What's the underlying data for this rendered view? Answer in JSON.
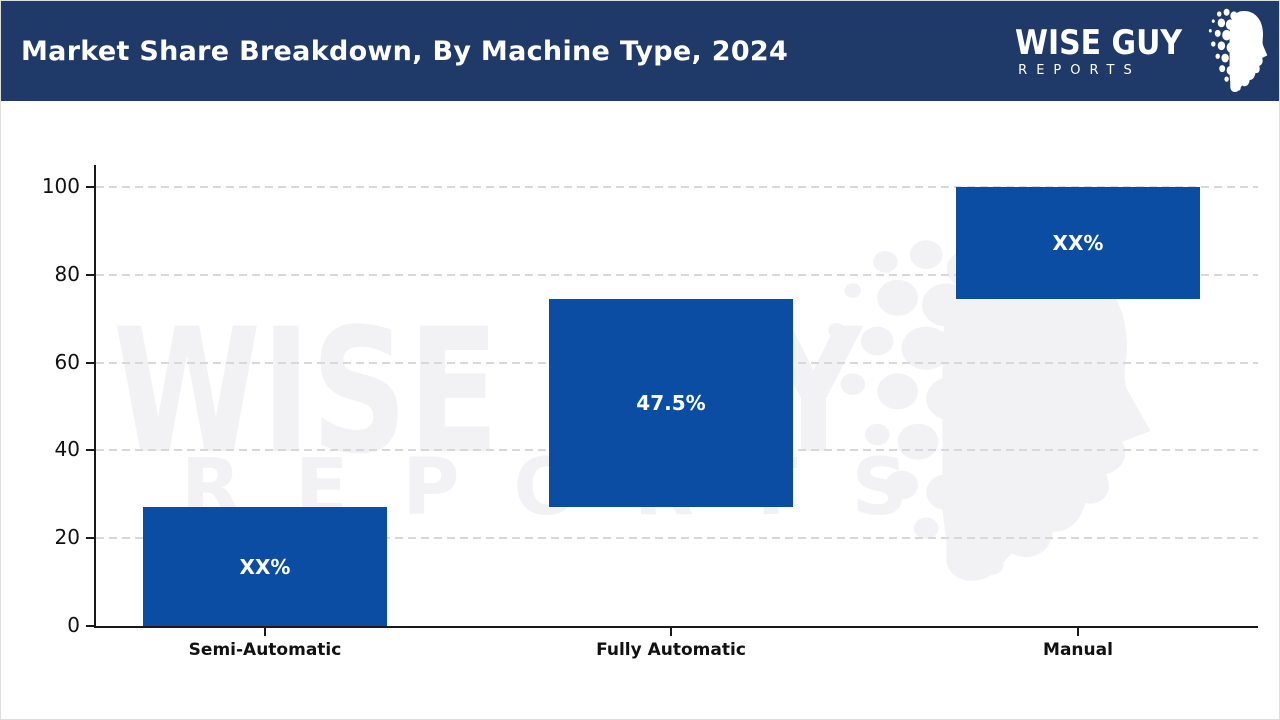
{
  "header": {
    "title": "Market Share Breakdown, By Machine Type, 2024",
    "logo": {
      "name": "WISE GUY",
      "subtitle": "REPORTS"
    }
  },
  "watermark": {
    "name": "WISE GUY",
    "subtitle": "REPORTS"
  },
  "chart_data": {
    "type": "bar",
    "subtype": "waterfall-breakdown",
    "title": "Market Share Breakdown, By Machine Type, 2024",
    "categories": [
      "Semi-Automatic",
      "Fully Automatic",
      "Manual"
    ],
    "segments": [
      {
        "category": "Semi-Automatic",
        "start": 0,
        "end": 27,
        "label": "XX%"
      },
      {
        "category": "Fully Automatic",
        "start": 27,
        "end": 74.5,
        "label": "47.5%"
      },
      {
        "category": "Manual",
        "start": 74.5,
        "end": 100,
        "label": "XX%"
      }
    ],
    "xlabel": "",
    "ylabel": "",
    "yticks": [
      0,
      20,
      40,
      60,
      80,
      100
    ],
    "ylim": [
      0,
      105
    ],
    "grid": "horizontal-dashed",
    "legend": "none",
    "bar_color": "#0b4da2",
    "value_label_color": "#ffffff"
  },
  "colors": {
    "header_bg": "#1f3a68",
    "bar": "#0b4da2",
    "watermark": "#f2f2f4",
    "grid": "#d8d8d8",
    "axis": "#1a1a1a"
  }
}
